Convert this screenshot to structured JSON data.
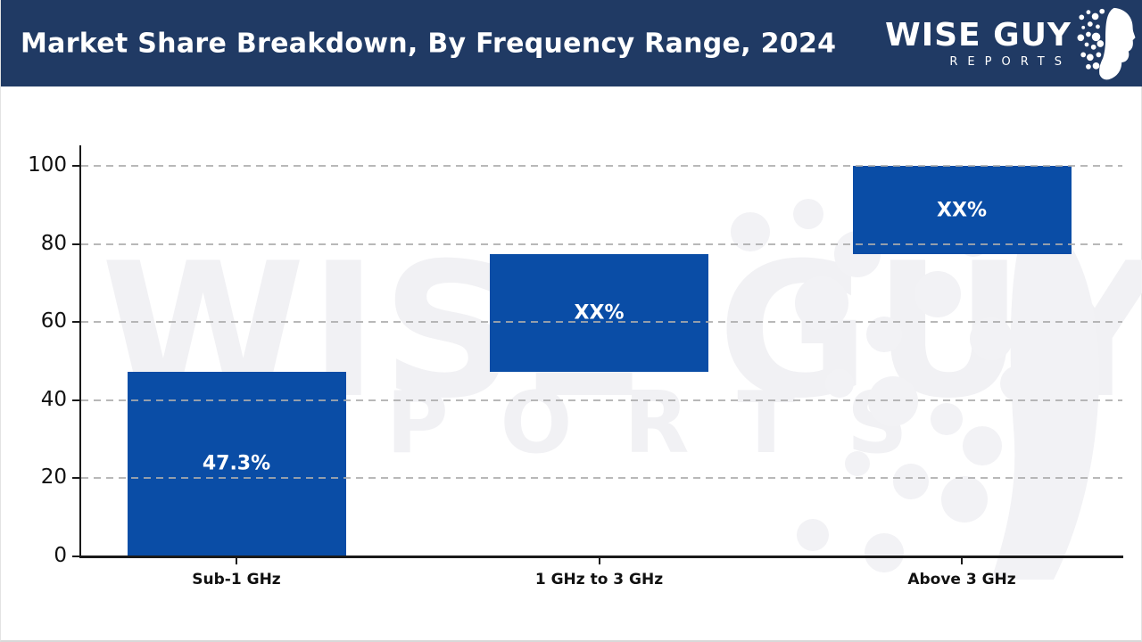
{
  "header": {
    "title": "Market Share Breakdown, By Frequency Range, 2024",
    "bg_color": "#203A64",
    "logo": {
      "line1": "WISE GUY",
      "line2": "REPORTS"
    }
  },
  "watermark": {
    "line1": "WISE GUY",
    "line2": "REPORTS",
    "color": "#F1F1F4"
  },
  "chart_data": {
    "type": "bar",
    "subtype": "waterfall",
    "title": "Market Share Breakdown, By Frequency Range, 2024",
    "categories": [
      "Sub-1 GHz",
      "1 GHz to 3 GHz",
      "Above 3 GHz"
    ],
    "segments": [
      {
        "category": "Sub-1 GHz",
        "start": 0,
        "end": 47.3,
        "label": "47.3%"
      },
      {
        "category": "1 GHz to 3 GHz",
        "start": 47.3,
        "end": 77.3,
        "label": "XX%"
      },
      {
        "category": "Above 3 GHz",
        "start": 77.3,
        "end": 100,
        "label": "XX%"
      }
    ],
    "xlabel": "",
    "ylabel": "",
    "ylim": [
      0,
      100
    ],
    "yticks": [
      0,
      20,
      40,
      60,
      80,
      100
    ],
    "grid": "horizontal-dashed",
    "legend": "none",
    "bar_color": "#0A4DA6",
    "bar_label_color": "#FFFFFF",
    "gridline_color": "#BEBEBE",
    "axis_color": "#1A1A1A"
  }
}
